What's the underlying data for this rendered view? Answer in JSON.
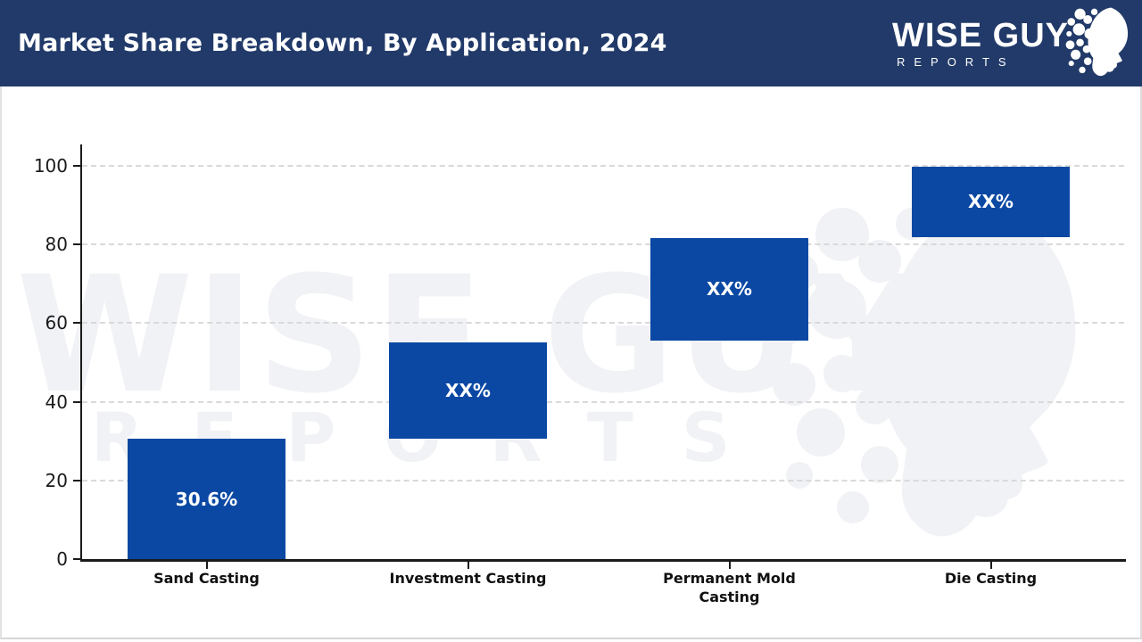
{
  "header": {
    "title": "Market Share Breakdown, By Application, 2024",
    "bg_color": "#213a69",
    "logo": {
      "line1": "WISE GUY",
      "line2": "REPORTS"
    }
  },
  "watermark": {
    "line1": "WISE GUY",
    "line2": "REPORTS"
  },
  "chart_data": {
    "type": "bar",
    "subtype": "floating-waterfall-segments",
    "title": "Market Share Breakdown, By Application, 2024",
    "categories": [
      "Sand Casting",
      "Investment Casting",
      "Permanent Mold Casting",
      "Die Casting"
    ],
    "series": [
      {
        "name": "Market Share",
        "segments": [
          {
            "start": 0,
            "end": 30.6,
            "label": "30.6%"
          },
          {
            "start": 30.6,
            "end": 55.1,
            "label": "XX%"
          },
          {
            "start": 55.6,
            "end": 81.6,
            "label": "XX%"
          },
          {
            "start": 81.9,
            "end": 99.8,
            "label": "XX%"
          }
        ]
      }
    ],
    "xlabel": "",
    "ylabel": "",
    "ylim": [
      0,
      100
    ],
    "yticks": [
      0,
      20,
      40,
      60,
      80,
      100
    ],
    "grid": "dashed-horizontal",
    "legend": "none",
    "bar_color": "#0b48a3",
    "bar_label_color": "#ffffff",
    "axis_color": "#1a1a1a",
    "grid_color": "#d9d9d9",
    "watermark_color": "#f1f2f5"
  }
}
